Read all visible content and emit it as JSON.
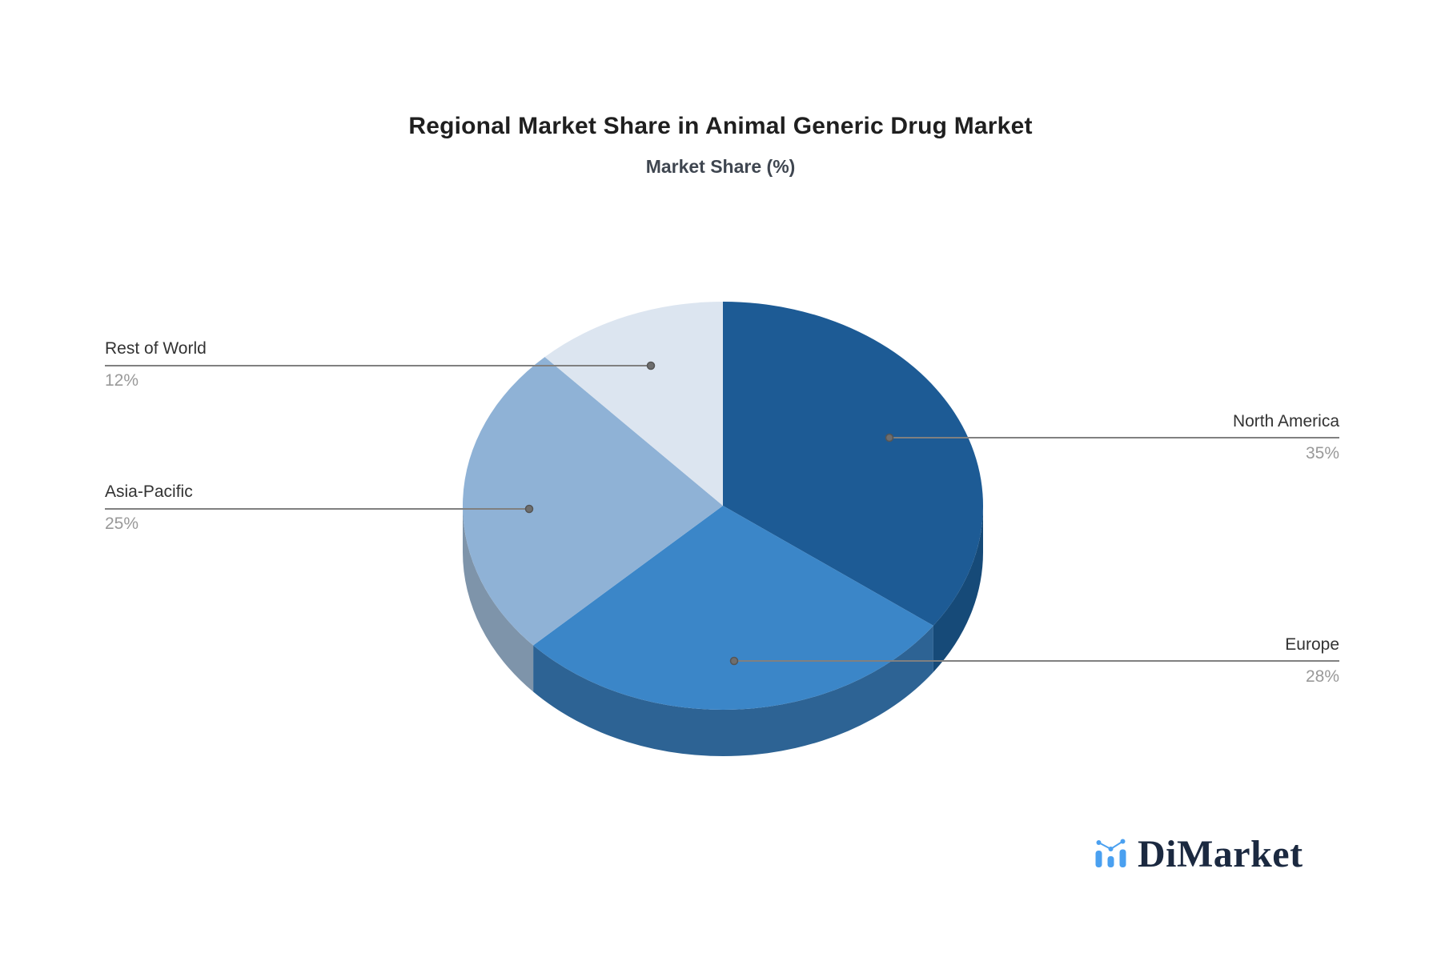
{
  "header": {
    "title": "Regional Market Share in Animal Generic Drug Market",
    "subtitle": "Market Share (%)"
  },
  "chart_data": {
    "type": "pie",
    "title": "Regional Market Share in Animal Generic Drug Market",
    "subtitle": "Market Share (%)",
    "unit": "%",
    "effect": "3d",
    "start_angle_deg": 0,
    "direction": "clockwise",
    "legend": "none",
    "slices": [
      {
        "label": "North America",
        "value": 35,
        "pct_label": "35%",
        "color": "#1d5b95",
        "side_color": "#164a78",
        "label_side": "right"
      },
      {
        "label": "Europe",
        "value": 28,
        "pct_label": "28%",
        "color": "#3b86c8",
        "side_color": "#2d6394",
        "label_side": "right"
      },
      {
        "label": "Asia-Pacific",
        "value": 25,
        "pct_label": "25%",
        "color": "#8fb2d6",
        "side_color": "#7e94aa",
        "label_side": "left"
      },
      {
        "label": "Rest of World",
        "value": 12,
        "pct_label": "12%",
        "color": "#dce5f0",
        "side_color": "#c9d4e2",
        "label_side": "left"
      }
    ],
    "leader_line_color": "#808080",
    "leader_dot_color": "#6e6e6e",
    "label_color": "#333333",
    "pct_color": "#999999"
  },
  "branding": {
    "logo_text": "DiMarket",
    "logo_icon": "mini-bar-line-chart",
    "icon_color": "#4aa0f0",
    "text_color": "#1b2940"
  }
}
